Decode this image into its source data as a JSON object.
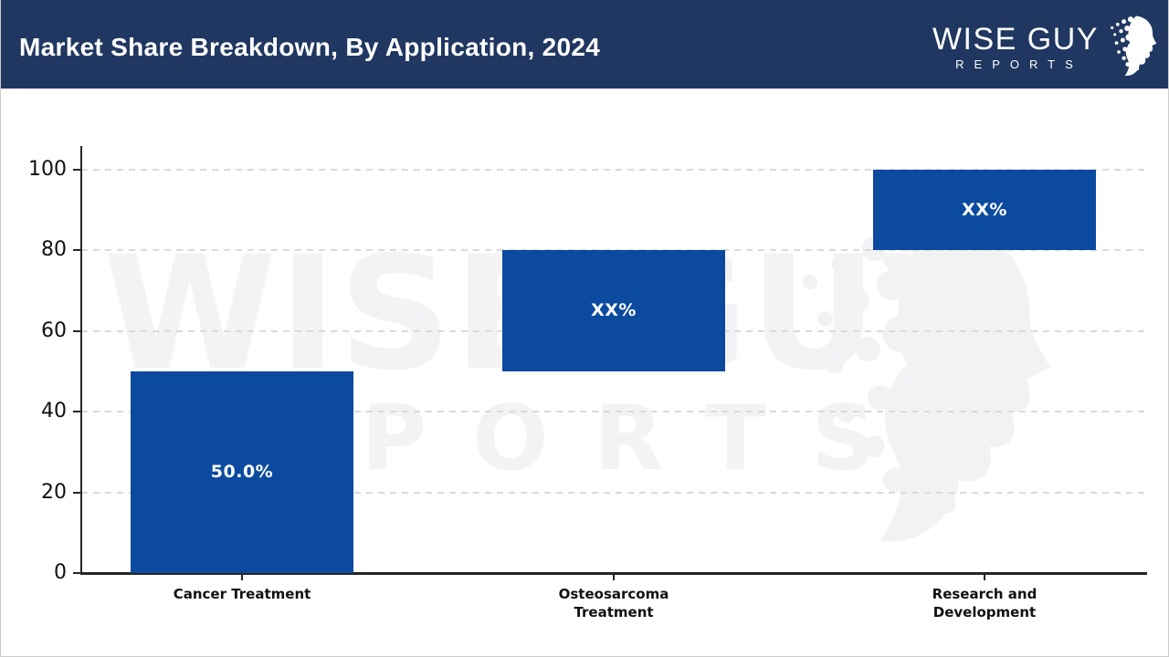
{
  "page": {
    "background": "#ffffff",
    "border_color": "#cccccc"
  },
  "header": {
    "title": "Market Share Breakdown, By Application, 2024",
    "background": "#203761",
    "logo": {
      "line1": "WISE GUY",
      "line2": "REPORTS"
    }
  },
  "watermark": {
    "line1": "WISE GUY",
    "line2": "REPORTS"
  },
  "chart_data": {
    "type": "bar",
    "subtype": "floating-waterfall-segments",
    "title": "Market Share Breakdown, By Application, 2024",
    "categories": [
      "Cancer Treatment",
      "Osteosarcoma\nTreatment",
      "Research and\nDevelopment"
    ],
    "segments": [
      {
        "category": "Cancer Treatment",
        "start": 0,
        "end": 50,
        "label": "50.0%"
      },
      {
        "category": "Osteosarcoma Treatment",
        "start": 50,
        "end": 80,
        "label": "XX%"
      },
      {
        "category": "Research and Development",
        "start": 80,
        "end": 100,
        "label": "XX%"
      }
    ],
    "yticks": [
      0,
      20,
      40,
      60,
      80,
      100
    ],
    "ylim": [
      0,
      105
    ],
    "xlabel": "",
    "ylabel": "",
    "grid": "horizontal-dashed",
    "legend": "none",
    "bar_color": "#0b4a9e",
    "bar_label_color": "#ffffff",
    "axis_color": "#262626",
    "gridline_color": "#dadada"
  }
}
